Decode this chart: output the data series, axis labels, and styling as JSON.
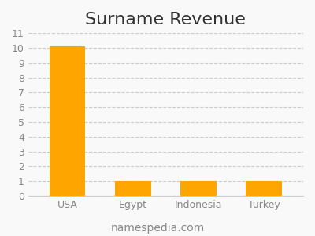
{
  "title": "Surname Revenue",
  "categories": [
    "USA",
    "Egypt",
    "Indonesia",
    "Turkey"
  ],
  "values": [
    10.1,
    1.0,
    1.0,
    1.0
  ],
  "bar_color": "#FFA500",
  "ylim": [
    0,
    11
  ],
  "yticks": [
    0,
    1,
    2,
    3,
    4,
    5,
    6,
    7,
    8,
    9,
    10,
    11
  ],
  "grid_color": "#cccccc",
  "background_color": "#f9f9f9",
  "title_fontsize": 16,
  "tick_fontsize": 9,
  "footer_text": "namespedia.com",
  "footer_fontsize": 10
}
